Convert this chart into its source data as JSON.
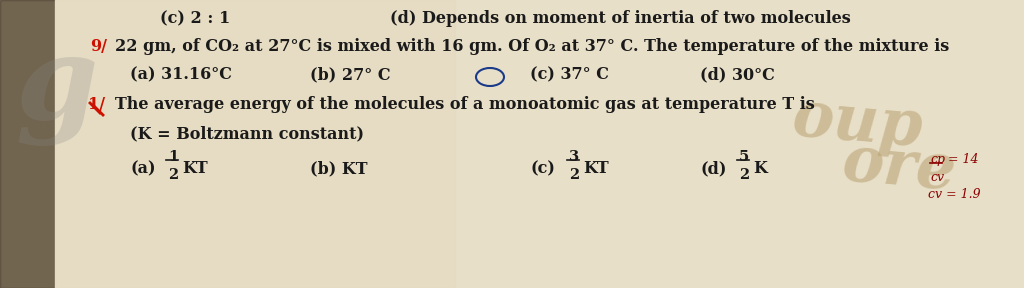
{
  "bg_color": "#c8b99a",
  "page_color": "#e8dfc8",
  "text_color": "#1a1a1a",
  "red_color": "#cc1100",
  "blue_circle_color": "#1a3a8a",
  "watermark_color": "#b8a070",
  "shadow_color": "#5a4a35",
  "line1_c": "(c) 2 : 1",
  "line1_d": "(d) Depends on moment of inertia of two molecules",
  "q9_text": "22 gm, of CO₂ at 27°C is mixed with 16 gm. Of O₂ at 37° C. The temperature of the mixture is",
  "q9a": "(a) 31.16°C",
  "q9b": "(b) 27° C",
  "q9c": "(c) 37° C",
  "q9d": "(d) 30°C",
  "q10_text": "The average energy of the molecules of a monoatomic gas at temperature T is",
  "q10_sub": "(K = Boltzmann constant)",
  "q10a": "(a)",
  "q10a_frac": "1",
  "q10a_denom": "2",
  "q10a_rest": "KT",
  "q10b": "(b) KT",
  "q10c": "(c)",
  "q10c_frac": "3",
  "q10c_denom": "2",
  "q10c_rest": "KT",
  "q10d": "(d)",
  "q10d_frac": "5",
  "q10d_denom": "2",
  "q10d_rest": "K",
  "note1": "cp = 14",
  "note2": "cv",
  "note3": "cv = 1.9",
  "fontsize_main": 11.5,
  "fontsize_small": 9
}
